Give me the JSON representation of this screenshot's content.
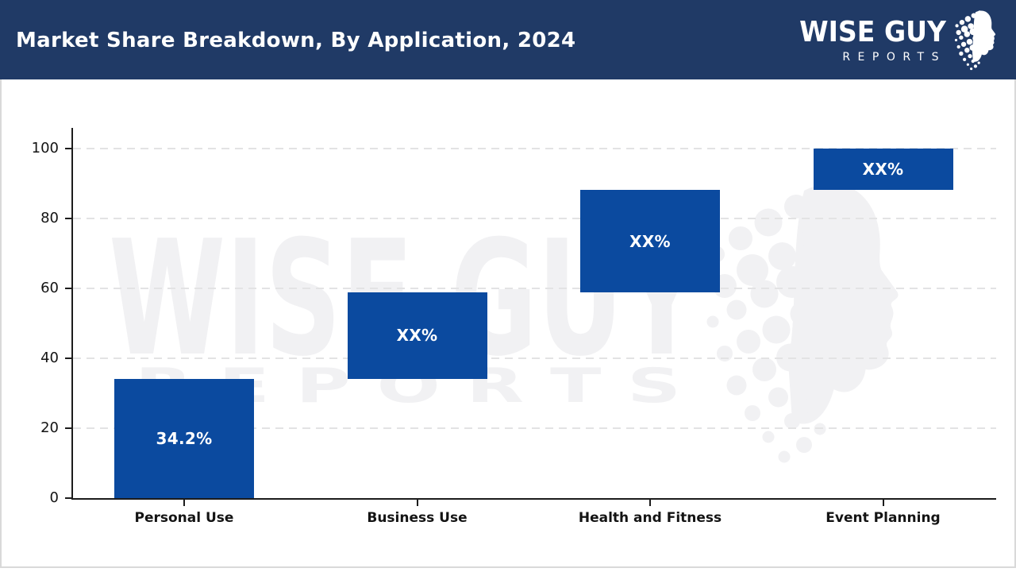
{
  "header": {
    "title": "Market Share Breakdown, By Application, 2024",
    "background_color": "#203a66",
    "logo": {
      "line1": "WISE GUY",
      "line2": "REPORTS",
      "face_icon": "dot-face-profile"
    }
  },
  "watermark": {
    "line1": "WISE GUY",
    "line2": "R E P O R T S",
    "face_icon": "dot-face-profile",
    "color": "#f1f1f3"
  },
  "chart_data": {
    "type": "bar",
    "subtype": "waterfall",
    "title": "Market Share Breakdown, By Application, 2024",
    "categories": [
      "Personal Use",
      "Business Use",
      "Health and Fitness",
      "Event Planning"
    ],
    "segments": [
      {
        "category": "Personal Use",
        "start": 0,
        "end": 34.2,
        "label": "34.2%"
      },
      {
        "category": "Business Use",
        "start": 34.2,
        "end": 58.8,
        "label": "XX%"
      },
      {
        "category": "Health and Fitness",
        "start": 58.8,
        "end": 88.2,
        "label": "XX%"
      },
      {
        "category": "Event Planning",
        "start": 88.2,
        "end": 100,
        "label": "XX%"
      }
    ],
    "xlabel": "",
    "ylabel": "",
    "ylim": [
      0,
      100
    ],
    "yticks": [
      0,
      20,
      40,
      60,
      80,
      100
    ],
    "grid": "horizontal dashed",
    "legend": "none",
    "bar_color": "#0b4a9f",
    "bar_label_color": "#ffffff",
    "axis_color": "#1c1c1c"
  }
}
